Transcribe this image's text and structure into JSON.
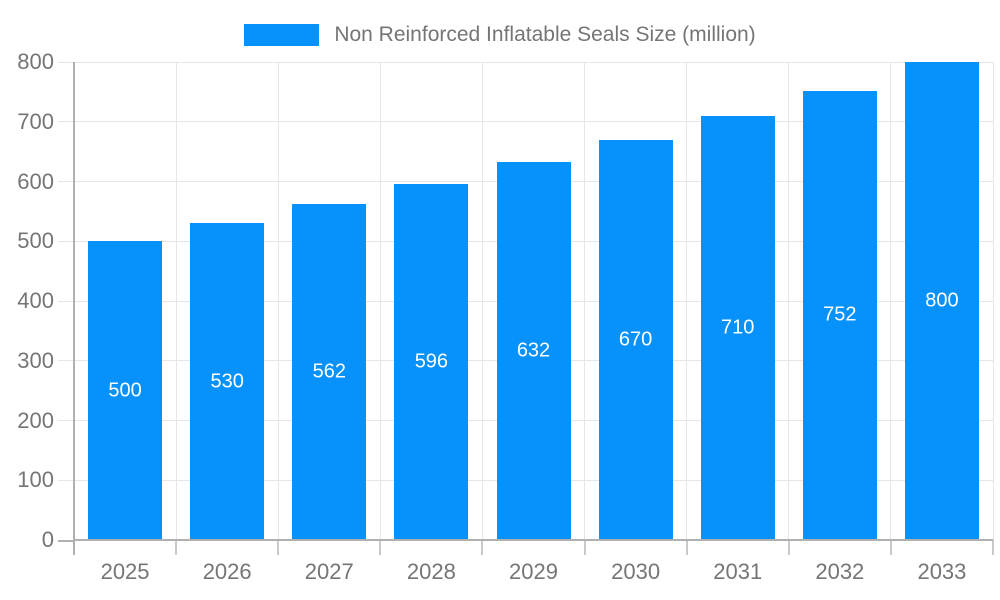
{
  "legend": {
    "label": "Non Reinforced Inflatable Seals Size (million)"
  },
  "colors": {
    "bar": "#0691fb",
    "axis": "#b0b0b0",
    "gridline": "#e6e6e6",
    "tick": "#c9c9c9",
    "axis_text": "#757575",
    "value_label": "#ffffff",
    "background": "#ffffff"
  },
  "chart_data": {
    "type": "bar",
    "title": "Non Reinforced Inflatable Seals Size (million)",
    "categories": [
      "2025",
      "2026",
      "2027",
      "2028",
      "2029",
      "2030",
      "2031",
      "2032",
      "2033"
    ],
    "values": [
      500,
      530,
      562,
      596,
      632,
      670,
      710,
      752,
      800
    ],
    "xlabel": "",
    "ylabel": "",
    "ylim": [
      0,
      800
    ],
    "yticks": [
      0,
      100,
      200,
      300,
      400,
      500,
      600,
      700,
      800
    ],
    "grid": true,
    "legend_position": "top-center",
    "value_labels": "inside-center-white"
  }
}
